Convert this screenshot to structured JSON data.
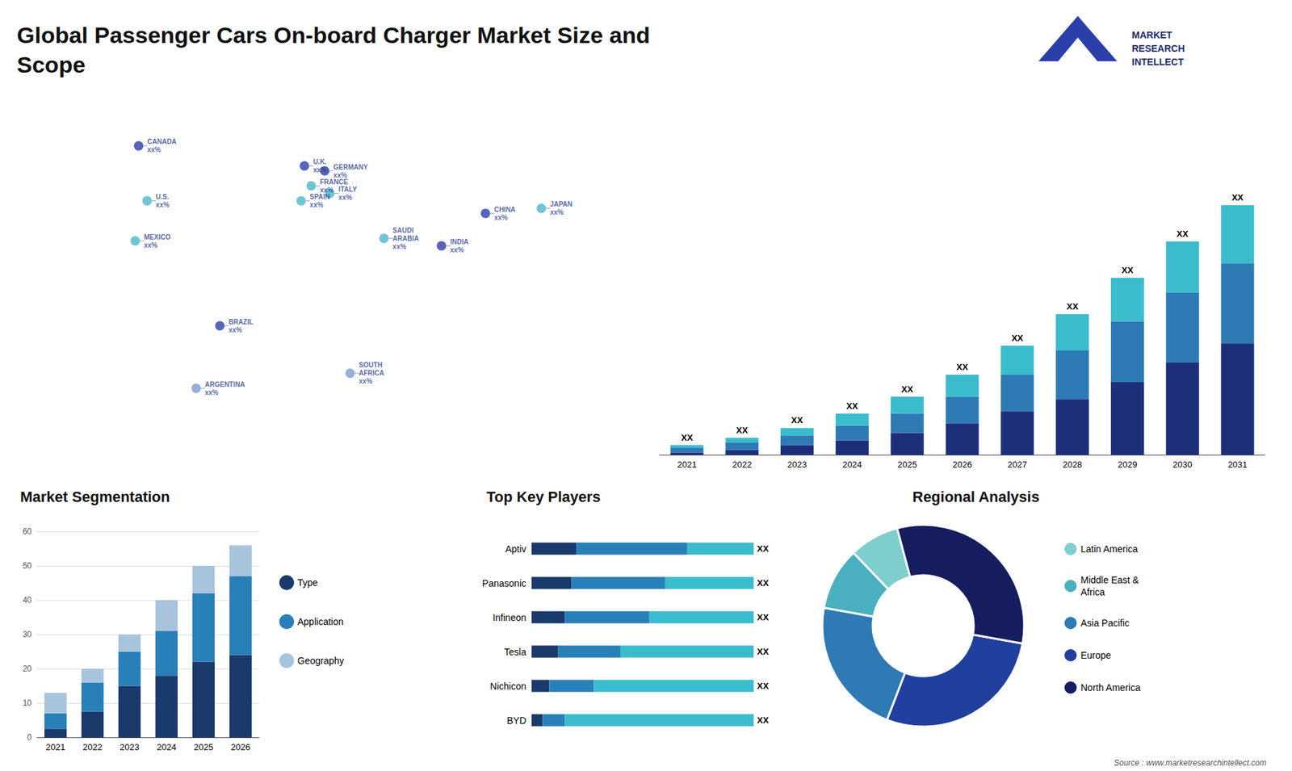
{
  "chart_data": [
    {
      "type": "bar",
      "title": "Global Passenger Cars On-board Charger Market Size and\nScope",
      "annotations": [
        "MARKET\nRESEARCH\nINTELLECT",
        "Source : www.marketresearchintellect.com"
      ],
      "categories": [
        "2021",
        "2022",
        "2023",
        "2024",
        "2025",
        "2026",
        "2027",
        "2028",
        "2029",
        "2030",
        "2031"
      ],
      "stacked": true,
      "tick_labels": "x",
      "ylim": [
        0,
        139.05
      ],
      "series": [
        {
          "color": "#1e2f7a",
          "values": [
            1,
            2,
            4,
            6,
            9,
            13,
            18,
            23,
            30,
            38,
            46
          ]
        },
        {
          "color": "#2e7ab5",
          "values": [
            2,
            3,
            4,
            6,
            8,
            11,
            15,
            20,
            25,
            29,
            33
          ]
        },
        {
          "color": "#3bbccc",
          "values": [
            1,
            2,
            3,
            5,
            7,
            9,
            12,
            15,
            18,
            21,
            24
          ],
          "value_labels": [
            "XX",
            "XX",
            "XX",
            "XX",
            "XX",
            "XX",
            "XX",
            "XX",
            "XX",
            "XX",
            "XX"
          ]
        }
      ]
    },
    {
      "type": "scatter",
      "x": [
        -100,
        -95,
        -102,
        -52,
        -66,
        -2,
        2,
        -4,
        10,
        13,
        45,
        25,
        79,
        105,
        138
      ],
      "values": [
        62,
        40,
        24,
        -10,
        -35,
        54,
        46,
        40,
        52,
        43,
        25,
        -29,
        22,
        35,
        37
      ],
      "colors": [
        "#2a3faa",
        "#4ab8c8",
        "#4ab8c8",
        "#2a3faa",
        "#7a9ed0",
        "#2a3faa",
        "#4ab8c8",
        "#4ab8c8",
        "#2a3faa",
        "#4ab8c8",
        "#4ab8c8",
        "#7a9ed0",
        "#2a3faa",
        "#2a3faa",
        "#4ab8c8"
      ],
      "value_labels": [
        "CANADA\nxx%",
        "U.S.\nxx%",
        "MEXICO\nxx%",
        "BRAZIL\nxx%",
        "ARGENTINA\nxx%",
        "U.K.\nxx%",
        "FRANCE\nxx%",
        "SPAIN\nxx%",
        "GERMANY\nxx%",
        "ITALY\nxx%",
        "SAUDI\nARABIA\nxx%",
        "SOUTH\nAFRICA\nxx%",
        "INDIA\nxx%",
        "CHINA\nxx%",
        "JAPAN\nxx%"
      ],
      "data_labels": true,
      "xlim": [
        -170,
        180
      ],
      "ylim": [
        -60,
        80
      ],
      "tick_labels": false
    },
    {
      "type": "bar",
      "title": "Market Segmentation",
      "categories": [
        "2021",
        "2022",
        "2023",
        "2024",
        "2025",
        "2026"
      ],
      "stacked": true,
      "series": [
        {
          "name": "Type",
          "color": "#1a3a6b",
          "values": [
            2.5,
            7.5,
            15,
            18,
            22,
            24
          ]
        },
        {
          "name": "Application",
          "color": "#2980b9",
          "values": [
            4.5,
            8.5,
            10,
            13,
            20,
            23
          ]
        },
        {
          "name": "Geography",
          "color": "#a8c4dc",
          "values": [
            6,
            4,
            5,
            9,
            8,
            9
          ]
        }
      ],
      "ylim": [
        0,
        60
      ],
      "yticks": [
        0,
        10,
        20,
        30,
        40,
        50,
        60
      ],
      "grid": true,
      "legend": "right"
    },
    {
      "type": "bar",
      "title": "Top Key Players",
      "orientation": "horizontal",
      "stacked": true,
      "categories": [
        "Aptiv",
        "Panasonic",
        "Infineon",
        "Tesla",
        "Nichicon",
        "BYD"
      ],
      "series": [
        {
          "color": "#1a3a6b",
          "values": [
            20,
            18,
            15,
            12,
            8,
            5
          ]
        },
        {
          "color": "#2980b9",
          "values": [
            50,
            42,
            38,
            28,
            20,
            10
          ]
        },
        {
          "color": "#3bbccc",
          "values": [
            30,
            40,
            47,
            60,
            72,
            85
          ],
          "value_labels": [
            "XX",
            "XX",
            "XX",
            "XX",
            "XX",
            "XX"
          ]
        }
      ],
      "xlim": [
        0,
        100
      ],
      "tick_labels": "y"
    },
    {
      "type": "pie",
      "title": "Regional Analysis",
      "categories": [
        "Latin America",
        "Middle East &\nAfrica",
        "Asia Pacific",
        "Europe",
        "North America"
      ],
      "values": [
        8,
        10,
        22,
        28,
        32
      ],
      "colors": [
        "#7ecece",
        "#4ab0c0",
        "#2e7ab5",
        "#2040a0",
        "#151d5e"
      ],
      "legend": "right"
    }
  ]
}
